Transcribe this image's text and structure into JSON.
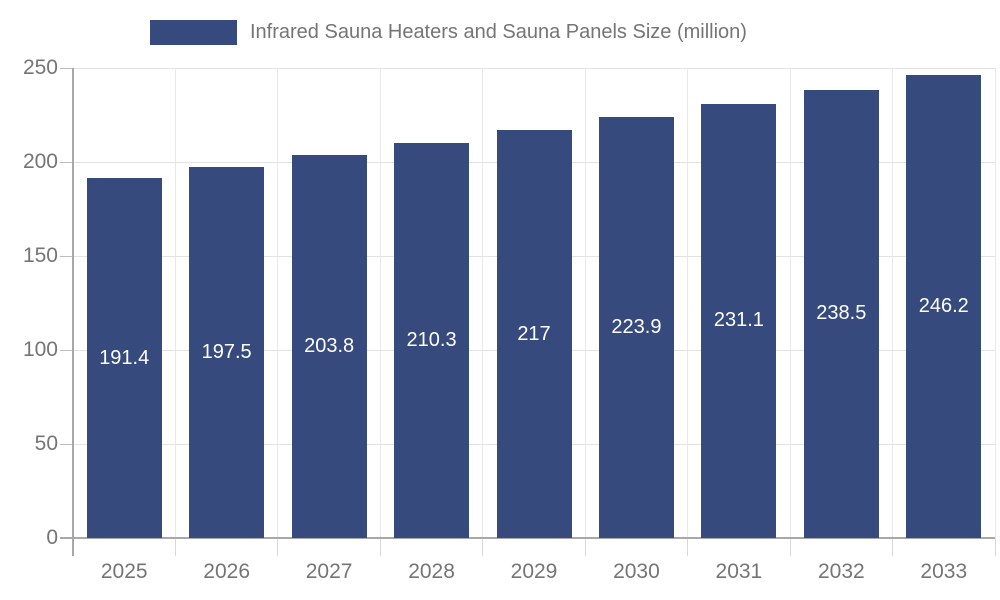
{
  "legend": {
    "label": "Infrared Sauna Heaters and Sauna Panels Size (million)"
  },
  "colors": {
    "bar": "#364A7E",
    "axis": "#a8a8a8",
    "grid_h": "#e2e2e2",
    "grid_v": "#e8e8e8",
    "text": "#757575",
    "value_label": "#ffffff",
    "background": "#ffffff"
  },
  "chart_data": {
    "type": "bar",
    "title": "Infrared Sauna Heaters and Sauna Panels Size (million)",
    "categories": [
      "2025",
      "2026",
      "2027",
      "2028",
      "2029",
      "2030",
      "2031",
      "2032",
      "2033"
    ],
    "values": [
      191.4,
      197.5,
      203.8,
      210.3,
      217,
      223.9,
      231.1,
      238.5,
      246.2
    ],
    "xlabel": "",
    "ylabel": "",
    "ylim": [
      0,
      250
    ],
    "yticks": [
      0,
      50,
      100,
      150,
      200,
      250
    ],
    "grid": true,
    "legend_position": "top",
    "value_labels": "inside-center-white"
  }
}
